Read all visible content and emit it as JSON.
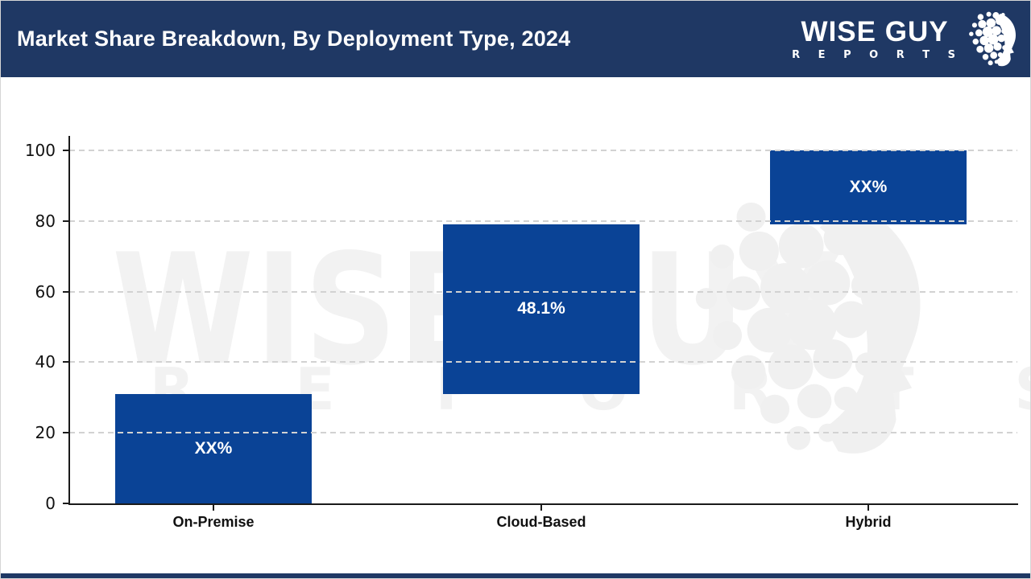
{
  "header": {
    "title": "Market Share Breakdown, By Deployment Type, 2024",
    "bg_color": "#1f3864",
    "logo": {
      "line1": "WISE GUY",
      "line2": "R E P O R T S"
    }
  },
  "watermark": {
    "line1": "WISE GUY",
    "line2": "R E P O R T S"
  },
  "chart_data": {
    "type": "bar",
    "subtype": "waterfall",
    "title": "Market Share Breakdown, By Deployment Type, 2024",
    "categories": [
      "On-Premise",
      "Cloud-Based",
      "Hybrid"
    ],
    "series": [
      {
        "name": "Market share (%)",
        "bases": [
          0,
          31,
          79.1
        ],
        "values": [
          31,
          48.1,
          20.9
        ]
      }
    ],
    "bar_labels": [
      "XX%",
      "48.1%",
      "XX%"
    ],
    "xlabel": "",
    "ylabel": "",
    "ylim": [
      0,
      100
    ],
    "yticks": [
      0,
      20,
      40,
      60,
      80,
      100
    ],
    "grid": "horizontal-dashed",
    "legend": "none",
    "bar_color": "#0a4396",
    "bar_label_color": "#ffffff",
    "grid_color": "#d2d2d2",
    "axis_color": "#1a1a1a"
  }
}
